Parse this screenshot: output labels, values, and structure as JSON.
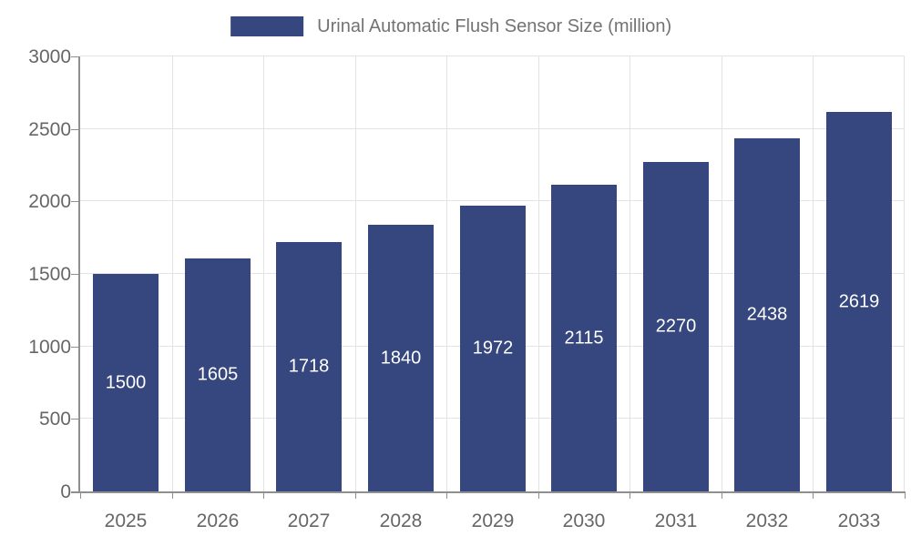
{
  "chart_data": {
    "type": "bar",
    "title": "Urinal Automatic Flush Sensor Size (million)",
    "categories": [
      "2025",
      "2026",
      "2027",
      "2028",
      "2029",
      "2030",
      "2031",
      "2032",
      "2033"
    ],
    "values": [
      1500,
      1605,
      1718,
      1840,
      1972,
      2115,
      2270,
      2438,
      2619
    ],
    "series_name": "Urinal Automatic Flush Sensor Size (million)",
    "xlabel": "",
    "ylabel": "",
    "ylim": [
      0,
      3000
    ],
    "yticks": [
      0,
      500,
      1000,
      1500,
      2000,
      2500,
      3000
    ],
    "grid": true,
    "legend_position": "top",
    "value_labels": "inside-center"
  },
  "colors": {
    "bar": "#36467E",
    "bar_value_label": "#ffffff",
    "legend_text": "#737373",
    "axis_tick_label": "#666666",
    "gridline": "#e3e3e3",
    "axis_line": "#8f8f8f",
    "background": "#ffffff"
  }
}
